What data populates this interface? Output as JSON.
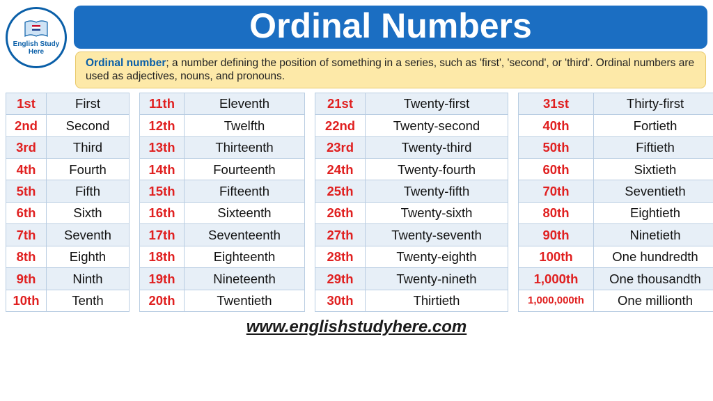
{
  "logo": {
    "line1": "English Study",
    "line2": "Here"
  },
  "title": "Ordinal Numbers",
  "definition": {
    "term": "Ordinal number",
    "text": "; a number defining the position of something in a series, such as 'first', 'second', or 'third'. Ordinal numbers are used as adjectives, nouns, and pronouns."
  },
  "columns": [
    [
      {
        "a": "1st",
        "w": "First"
      },
      {
        "a": "2nd",
        "w": "Second"
      },
      {
        "a": "3rd",
        "w": "Third"
      },
      {
        "a": "4th",
        "w": "Fourth"
      },
      {
        "a": "5th",
        "w": "Fifth"
      },
      {
        "a": "6th",
        "w": "Sixth"
      },
      {
        "a": "7th",
        "w": "Seventh"
      },
      {
        "a": "8th",
        "w": "Eighth"
      },
      {
        "a": "9th",
        "w": "Ninth"
      },
      {
        "a": "10th",
        "w": "Tenth"
      }
    ],
    [
      {
        "a": "11th",
        "w": "Eleventh"
      },
      {
        "a": "12th",
        "w": "Twelfth"
      },
      {
        "a": "13th",
        "w": "Thirteenth"
      },
      {
        "a": "14th",
        "w": "Fourteenth"
      },
      {
        "a": "15th",
        "w": "Fifteenth"
      },
      {
        "a": "16th",
        "w": "Sixteenth"
      },
      {
        "a": "17th",
        "w": "Seventeenth"
      },
      {
        "a": "18th",
        "w": "Eighteenth"
      },
      {
        "a": "19th",
        "w": "Nineteenth"
      },
      {
        "a": "20th",
        "w": "Twentieth"
      }
    ],
    [
      {
        "a": "21st",
        "w": "Twenty-first"
      },
      {
        "a": "22nd",
        "w": "Twenty-second"
      },
      {
        "a": "23rd",
        "w": "Twenty-third"
      },
      {
        "a": "24th",
        "w": "Twenty-fourth"
      },
      {
        "a": "25th",
        "w": "Twenty-fifth"
      },
      {
        "a": "26th",
        "w": "Twenty-sixth"
      },
      {
        "a": "27th",
        "w": "Twenty-seventh"
      },
      {
        "a": "28th",
        "w": "Twenty-eighth"
      },
      {
        "a": "29th",
        "w": "Twenty-nineth"
      },
      {
        "a": "30th",
        "w": "Thirtieth"
      }
    ],
    [
      {
        "a": "31st",
        "w": "Thirty-first"
      },
      {
        "a": "40th",
        "w": "Fortieth"
      },
      {
        "a": "50th",
        "w": "Fiftieth"
      },
      {
        "a": "60th",
        "w": "Sixtieth"
      },
      {
        "a": "70th",
        "w": "Seventieth"
      },
      {
        "a": "80th",
        "w": "Eightieth"
      },
      {
        "a": "90th",
        "w": "Ninetieth"
      },
      {
        "a": "100th",
        "w": "One hundredth"
      },
      {
        "a": "1,000th",
        "w": "One thousandth"
      },
      {
        "a": "1,000,000th",
        "w": "One millionth",
        "small": true
      }
    ]
  ],
  "footer": "www.englishstudyhere.com",
  "style": {
    "title_bg": "#1b6ec2",
    "title_color": "#ffffff",
    "logo_border": "#0a5fa8",
    "def_bg": "#fde9a8",
    "def_border": "#e8c96b",
    "cell_border": "#b9cde2",
    "row_alt_bg": "#e7eff7",
    "abbr_color": "#e02020",
    "word_color": "#111111",
    "title_fontsize": 50,
    "cell_fontsize": 18.5,
    "footer_fontsize": 24
  }
}
